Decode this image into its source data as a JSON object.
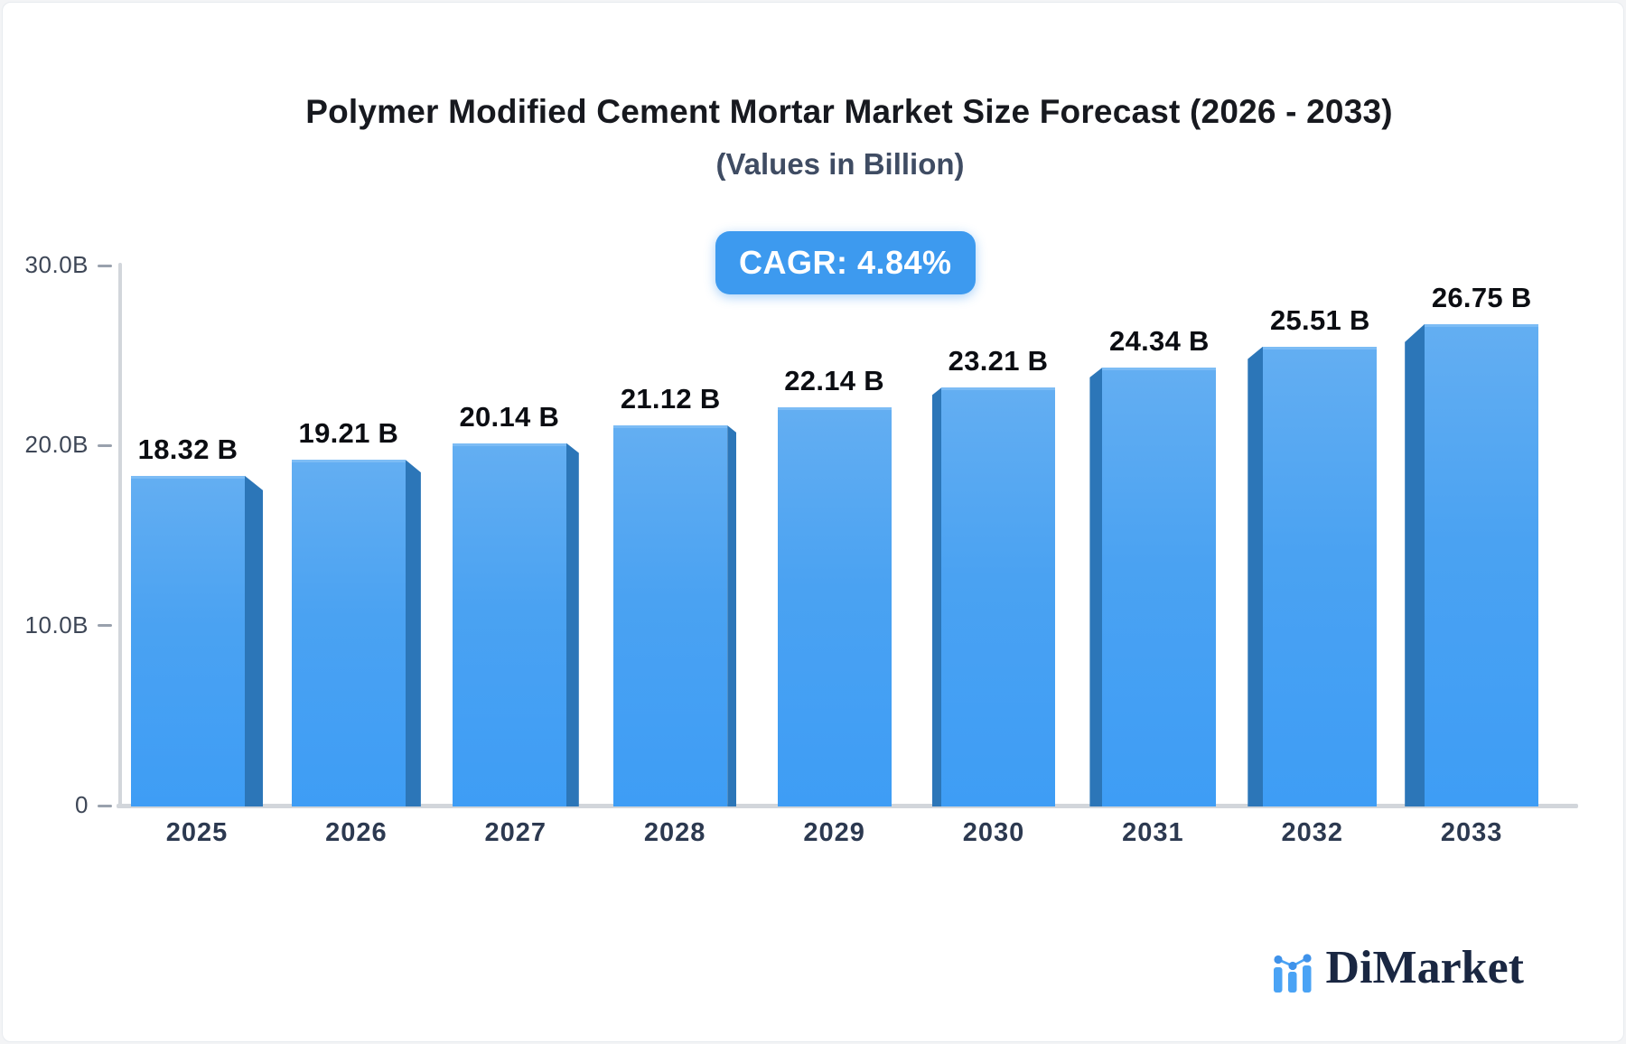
{
  "header": {
    "title": "Polymer Modified Cement Mortar Market Size Forecast (2026 - 2033)",
    "subtitle": "(Values in Billion)"
  },
  "cagr_badge": {
    "label": "CAGR: 4.84%",
    "background": "#3d9aef",
    "text_color": "#ffffff"
  },
  "chart_data": {
    "type": "bar",
    "title": "Polymer Modified Cement Mortar Market Size Forecast (2026 - 2033)",
    "subtitle": "(Values in Billion)",
    "unit": "Billion",
    "cagr_percent": 4.84,
    "categories": [
      "2025",
      "2026",
      "2027",
      "2028",
      "2029",
      "2030",
      "2031",
      "2032",
      "2033"
    ],
    "values": [
      18.32,
      19.21,
      20.14,
      21.12,
      22.14,
      23.21,
      24.34,
      25.51,
      26.75
    ],
    "value_labels": [
      "18.32 B",
      "19.21 B",
      "20.14 B",
      "21.12 B",
      "22.14 B",
      "23.21 B",
      "24.34 B",
      "25.51 B",
      "26.75 B"
    ],
    "xlabel": "",
    "ylabel": "",
    "ylim": [
      0,
      30
    ],
    "yticks": [
      {
        "value": 0,
        "label": "0"
      },
      {
        "value": 10,
        "label": "10.0B"
      },
      {
        "value": 20,
        "label": "20.0B"
      },
      {
        "value": 30,
        "label": "30.0B"
      }
    ],
    "grid": false,
    "legend": null,
    "colors": {
      "bar_face_top": "#63aef2",
      "bar_face_bottom": "#3e9df5",
      "bar_side_shadow": "#2c76b8",
      "bar_top_highlight": "#7cbcf5",
      "axis_line": "#d2d6db",
      "tick_label": "#3d4656",
      "category_label": "#2c3950",
      "value_label": "#0b0d12"
    }
  },
  "branding": {
    "name": "DiMarket",
    "icon": "dimarket-logo-icon",
    "icon_color": "#4aa3f5",
    "text_color": "#1a2742"
  }
}
